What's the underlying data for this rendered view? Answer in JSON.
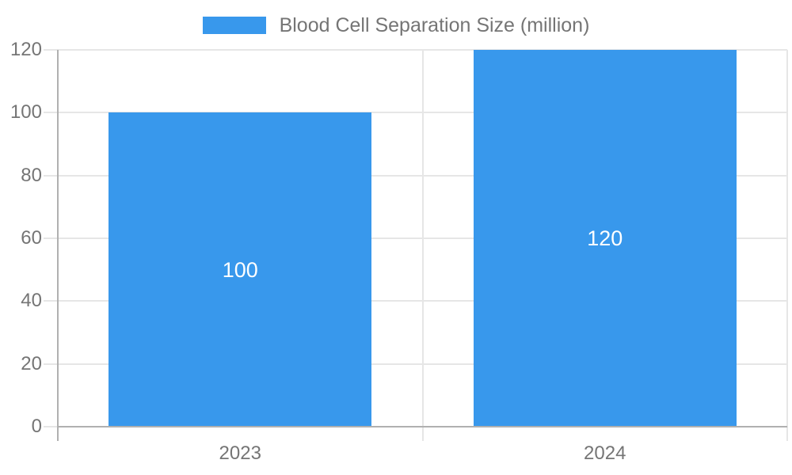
{
  "chart_data": {
    "type": "bar",
    "title": "",
    "legend": {
      "label": "Blood Cell Separation Size (million)",
      "position": "top"
    },
    "categories": [
      "2023",
      "2024"
    ],
    "series": [
      {
        "name": "Blood Cell Separation Size (million)",
        "values": [
          100,
          120
        ]
      }
    ],
    "bar_labels": [
      "100",
      "120"
    ],
    "xlabel": "",
    "ylabel": "",
    "ylim": [
      0,
      120
    ],
    "yticks": [
      0,
      20,
      40,
      60,
      80,
      100,
      120
    ],
    "grid": true,
    "colors": {
      "bar": "#3898ec",
      "bar_label": "#ffffff",
      "axis_text": "#757575",
      "gridline": "#e6e6e6",
      "axis_line": "#b0b0b0",
      "background": "#ffffff"
    }
  }
}
